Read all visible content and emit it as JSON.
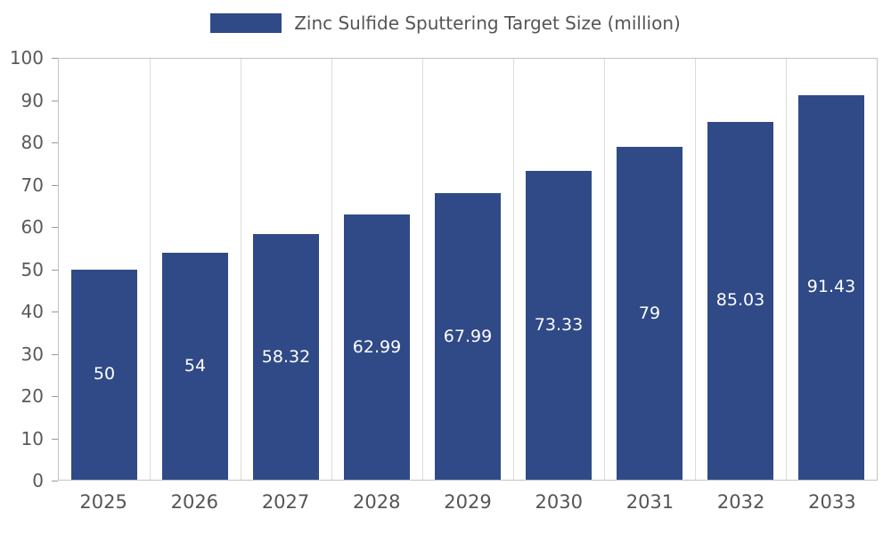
{
  "chart_data": {
    "type": "bar",
    "title": "Zinc Sulfide Sputtering Target Size (million)",
    "categories": [
      "2025",
      "2026",
      "2027",
      "2028",
      "2029",
      "2030",
      "2031",
      "2032",
      "2033"
    ],
    "values": [
      50,
      54,
      58.32,
      62.99,
      67.99,
      73.33,
      79,
      85.03,
      91.43
    ],
    "value_labels": [
      "50",
      "54",
      "58.32",
      "62.99",
      "67.99",
      "73.33",
      "79",
      "85.03",
      "91.43"
    ],
    "ylim": [
      0,
      100
    ],
    "y_ticks": [
      0,
      10,
      20,
      30,
      40,
      50,
      60,
      70,
      80,
      90,
      100
    ],
    "xlabel": "",
    "ylabel": "",
    "bar_color": "#2f4a87",
    "bar_label_color": "#ffffff",
    "gridlines": "vertical",
    "legend_position": "top-center"
  }
}
